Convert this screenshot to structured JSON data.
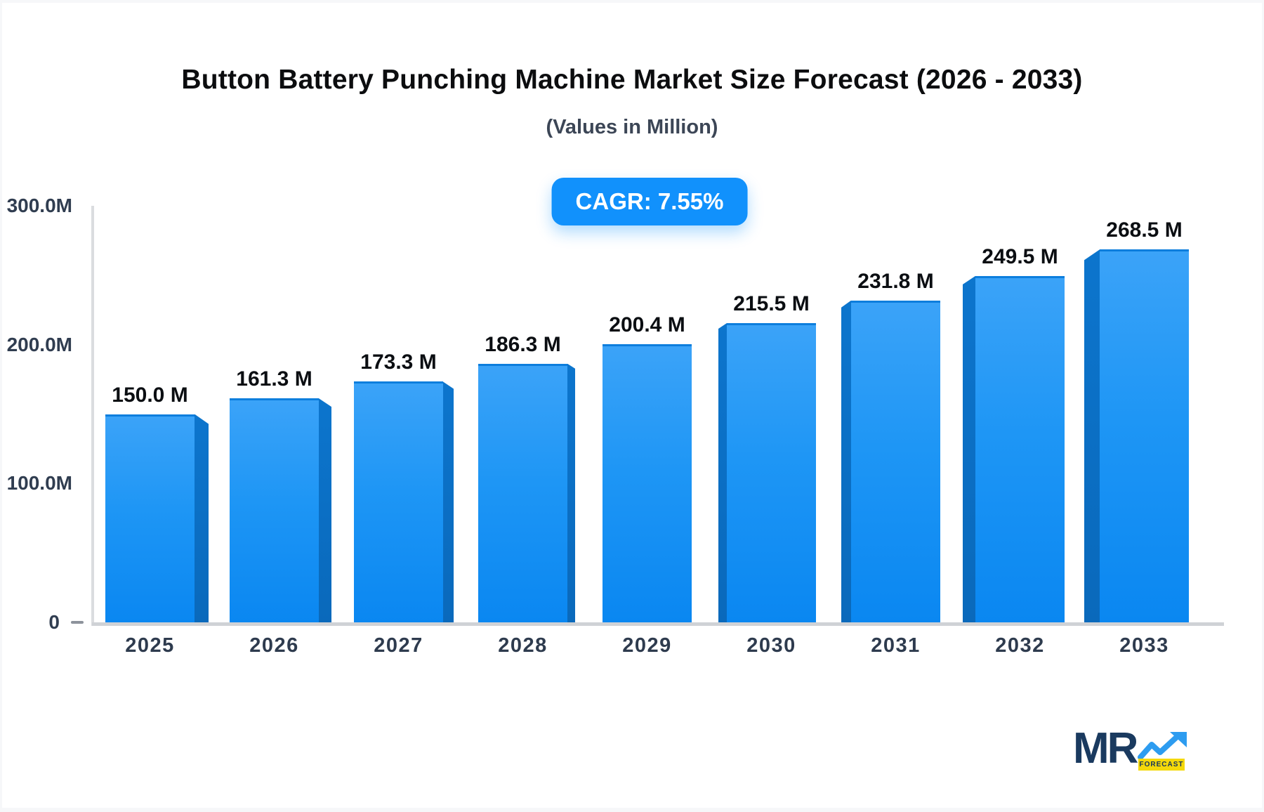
{
  "page": {
    "background": "#f6f7f9",
    "card_background": "#ffffff"
  },
  "header": {
    "title": "Button Battery Punching Machine Market Size Forecast (2026 - 2033)",
    "subtitle": "(Values in Million)"
  },
  "badge": {
    "label": "CAGR: 7.55%",
    "background": "#1191fc",
    "text_color": "#ffffff"
  },
  "chart_data": {
    "type": "bar",
    "style": "3d-extruded, vanishing point at center bar",
    "title": "Button Battery Punching Machine Market Size Forecast (2026 - 2033)",
    "subtitle": "(Values in Million)",
    "categories": [
      "2025",
      "2026",
      "2027",
      "2028",
      "2029",
      "2030",
      "2031",
      "2032",
      "2033"
    ],
    "values": [
      150.0,
      161.3,
      173.3,
      186.3,
      200.4,
      215.5,
      231.8,
      249.5,
      268.5
    ],
    "bar_labels": [
      "150.0 M",
      "161.3 M",
      "173.3 M",
      "186.3 M",
      "200.4 M",
      "215.5 M",
      "231.8 M",
      "249.5 M",
      "268.5 M"
    ],
    "xlabel": "",
    "ylabel": "",
    "ylim": [
      0,
      300
    ],
    "yticks": [
      {
        "value": 300,
        "label": "300.0M"
      },
      {
        "value": 200,
        "label": "200.0M"
      },
      {
        "value": 100,
        "label": "100.0M"
      },
      {
        "value": 0,
        "label": "0"
      }
    ],
    "grid": "off",
    "legend": "none",
    "bar_color_top": "#3ba3f8",
    "bar_color_bottom": "#0a87f1",
    "bar_side_color": "#0b70c6",
    "axis_color": "#d2d5d9",
    "label_color": "#2e3b4e",
    "value_label_color": "#0b0e12"
  },
  "logo": {
    "text": "MR",
    "sub_text": "FORECAST",
    "navy": "#1a3a5f",
    "arrow_blue": "#2d9cf0",
    "yellow": "#f5d90a"
  }
}
